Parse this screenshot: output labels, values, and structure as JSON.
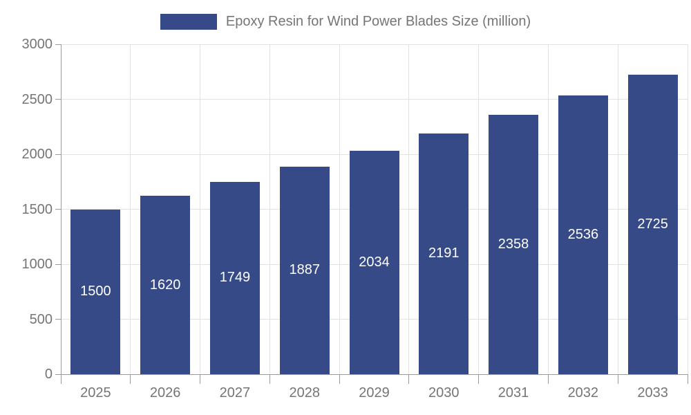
{
  "legend": {
    "label": "Epoxy Resin for Wind Power Blades Size (million)"
  },
  "colors": {
    "bar": "#364a87",
    "value_label": "#ffffff",
    "axis_label": "#757575",
    "legend_text": "#757575",
    "grid": "#e2e2e2",
    "axis_line": "#9a9a9a",
    "background": "#ffffff"
  },
  "chart_data": {
    "type": "bar",
    "title": "Epoxy Resin for Wind Power Blades Size (million)",
    "series_name": "Epoxy Resin for Wind Power Blades Size (million)",
    "categories": [
      "2025",
      "2026",
      "2027",
      "2028",
      "2029",
      "2030",
      "2031",
      "2032",
      "2033"
    ],
    "values": [
      1500,
      1620,
      1749,
      1887,
      2034,
      2191,
      2358,
      2536,
      2725
    ],
    "xlabel": "",
    "ylabel": "",
    "ylim": [
      0,
      3000
    ],
    "yticks": [
      0,
      500,
      1000,
      1500,
      2000,
      2500,
      3000
    ],
    "grid": true,
    "legend_position": "top",
    "bar_labels_shown": true
  }
}
